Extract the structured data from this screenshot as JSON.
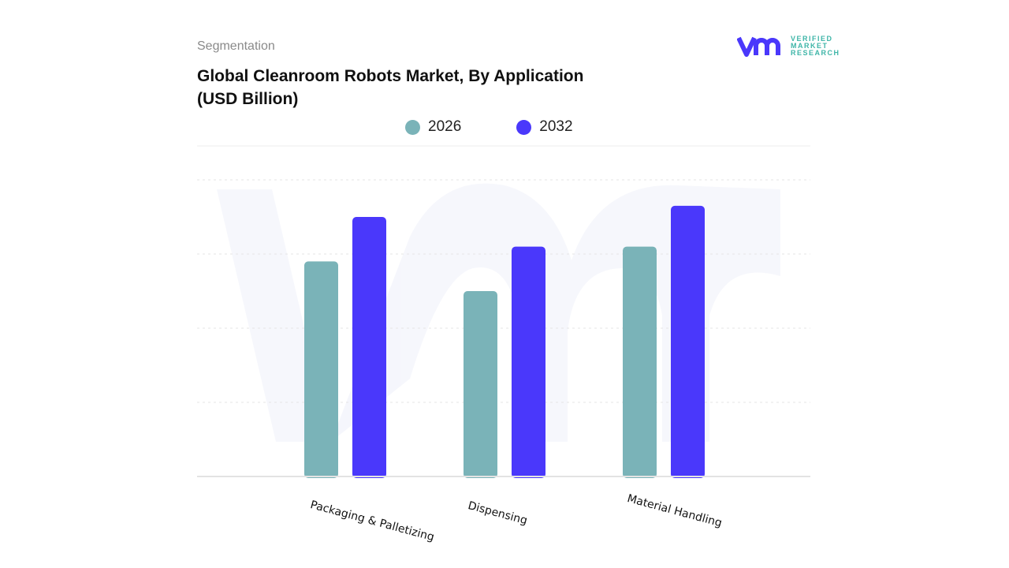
{
  "header": {
    "section": "Segmentation",
    "title": "Global Cleanroom Robots Market, By Application (USD Billion)"
  },
  "logo": {
    "text": [
      "VERIFIED",
      "MARKET",
      "RESEARCH"
    ],
    "mark": "vmr"
  },
  "chart_data": {
    "type": "bar",
    "title": "Global Cleanroom Robots Market, By Application (USD Billion)",
    "categories": [
      "Packaging & Palletizing",
      "Dispensing",
      "Material Handling"
    ],
    "series": [
      {
        "name": "2026",
        "color": "#7ab3b8",
        "values": [
          2.9,
          2.5,
          3.1
        ]
      },
      {
        "name": "2032",
        "color": "#4a38fb",
        "values": [
          3.5,
          3.1,
          3.65
        ]
      }
    ],
    "ylim": [
      0,
      4
    ],
    "grid": true,
    "legend": "top-center",
    "xlabel": "",
    "ylabel": ""
  }
}
